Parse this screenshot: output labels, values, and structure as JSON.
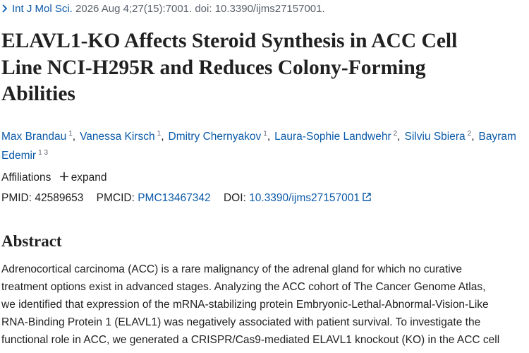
{
  "citation": {
    "journal": "Int J Mol Sci.",
    "details": "2026 Aug 4;27(15):7001. doi: 10.3390/ijms27157001."
  },
  "title_lines": [
    "ELAVL1-KO Affects Steroid Synthesis in ACC Cell",
    "Line NCI-H295R and Reduces Colony-Forming",
    "Abilities"
  ],
  "authors": [
    {
      "name": "Max Brandau",
      "sup": "1",
      "sep": ","
    },
    {
      "name": "Vanessa Kirsch",
      "sup": "1",
      "sep": ","
    },
    {
      "name": "Dmitry Chernyakov",
      "sup": "1",
      "sep": ","
    },
    {
      "name": "Laura-Sophie Landwehr",
      "sup": "2",
      "sep": ","
    },
    {
      "name": "Silviu Sbiera",
      "sup": "2",
      "sep": ","
    },
    {
      "name": "Bayram Edemir",
      "sup": "1 3"
    }
  ],
  "affiliations": {
    "label": "Affiliations",
    "toggle": "expand"
  },
  "identifiers": {
    "pmid_label": "PMID:",
    "pmid": "42589653",
    "pmcid_label": "PMCID:",
    "pmcid": "PMC13467342",
    "doi_label": "DOI:",
    "doi": "10.3390/ijms27157001"
  },
  "abstract": {
    "heading": "Abstract",
    "lines": [
      "Adrenocortical carcinoma (ACC) is a rare malignancy of the adrenal gland for which no curative",
      "treatment options exist in advanced stages. Analyzing the ACC cohort of The Cancer Genome Atlas,",
      "we identified that expression of the mRNA-stabilizing protein Embryonic-Lethal-Abnormal-Vision-Like",
      "RNA-Binding Protein 1 (ELAVL1) was negatively associated with patient survival. To investigate the",
      "functional role in ACC, we generated a CRISPR/Cas9-mediated ELAVL1 knockout (KO) in the ACC cell"
    ]
  }
}
